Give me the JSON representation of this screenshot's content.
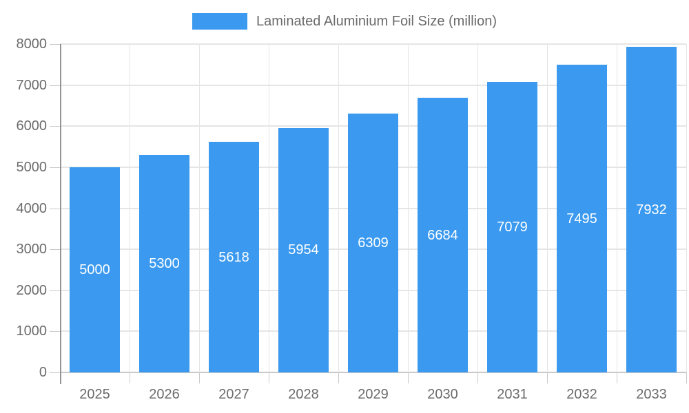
{
  "legend": {
    "label": "Laminated Aluminium Foil Size (million)"
  },
  "chart_data": {
    "type": "bar",
    "title": "Laminated Aluminium Foil Size (million)",
    "categories": [
      "2025",
      "2026",
      "2027",
      "2028",
      "2029",
      "2030",
      "2031",
      "2032",
      "2033"
    ],
    "values": [
      5000,
      5300,
      5618,
      5954,
      6309,
      6684,
      7079,
      7495,
      7932
    ],
    "data_labels": [
      "5000",
      "5300",
      "5618",
      "5954",
      "6309",
      "6684",
      "7079",
      "7495",
      "7932"
    ],
    "series_name": "Laminated Aluminium Foil Size (million)",
    "xlabel": "",
    "ylabel": "",
    "ylim": [
      0,
      8000
    ],
    "ytick_step": 1000,
    "ytick_labels": [
      "0",
      "1000",
      "2000",
      "3000",
      "4000",
      "5000",
      "6000",
      "7000",
      "8000"
    ],
    "grid": true,
    "legend_position": "top",
    "data_label_position": "inside-middle"
  },
  "colors": {
    "bar": "#3B9AEF",
    "grid": "#E5E5E5",
    "zero_line": "#C9C9C9",
    "tick": "#C9C9C9",
    "y_axis_line": "#949494",
    "text": "#6B6B6B",
    "data_label": "#FFFFFF",
    "background": "#FFFFFF"
  }
}
